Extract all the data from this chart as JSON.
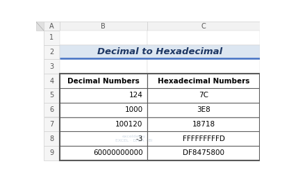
{
  "title": "Decimal to Hexadecimal",
  "col_headers": [
    "Decimal Numbers",
    "Hexadecimal Numbers"
  ],
  "rows": [
    [
      "124",
      "7C"
    ],
    [
      "1000",
      "3E8"
    ],
    [
      "100120",
      "18718"
    ],
    [
      "-3",
      "FFFFFFFFFD"
    ],
    [
      "60000000000",
      "DF8475800"
    ]
  ],
  "col_labels": [
    "A",
    "B",
    "C"
  ],
  "row_labels": [
    "1",
    "2",
    "3",
    "4",
    "5",
    "6",
    "7",
    "8",
    "9"
  ],
  "bg_color": "#FFFFFF",
  "title_color": "#1F3864",
  "title_bg": "#DCE6F1",
  "excel_header_bg": "#F2F2F2",
  "excel_header_border": "#D0D0D0",
  "cell_border": "#D0D0D0",
  "table_border_color": "#595959",
  "watermark_color": "#C0CEDC",
  "corner_bg": "#E0E0E0",
  "col_a_bg": "#F5F5F5",
  "row_num_bg": "#F5F5F5"
}
